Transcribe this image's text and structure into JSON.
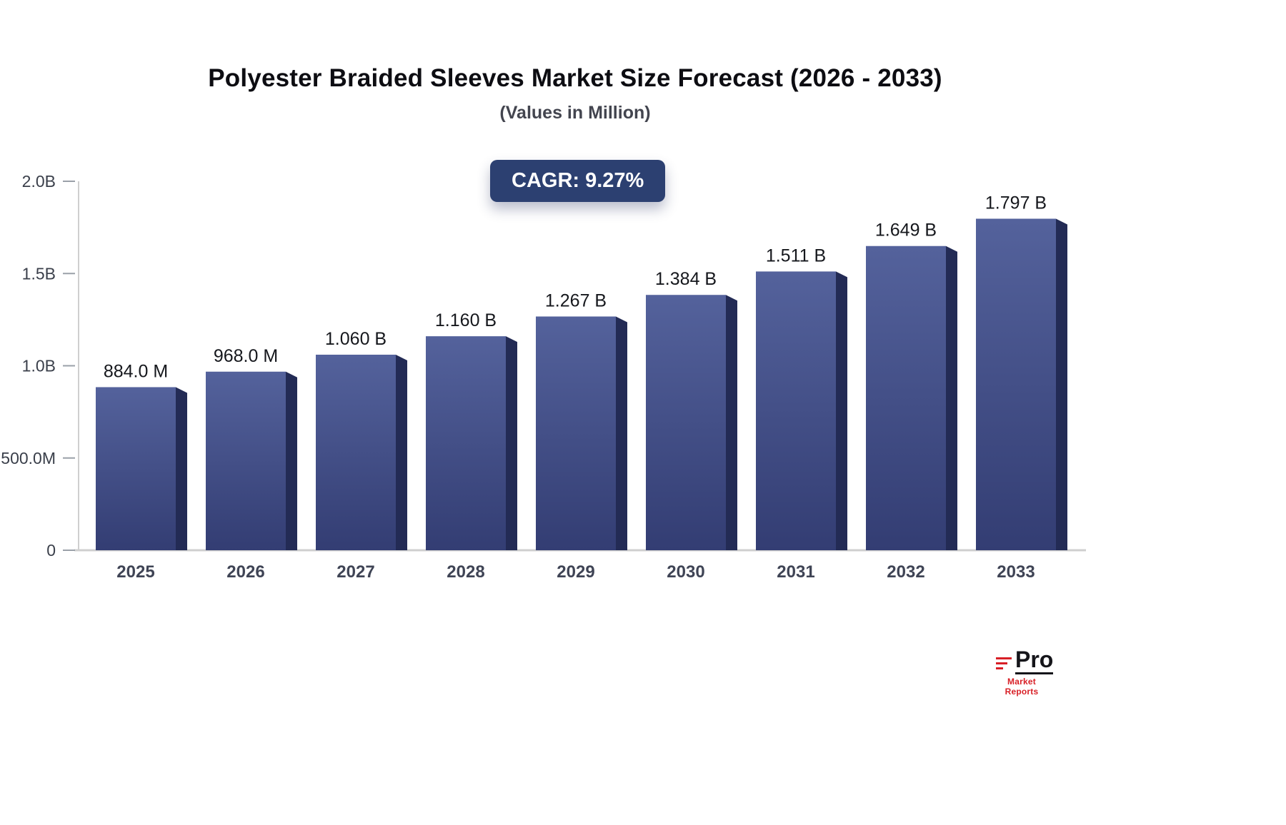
{
  "title": "Polyester Braided Sleeves Market Size Forecast (2026 - 2033)",
  "subtitle": "(Values in Million)",
  "badge": {
    "label": "CAGR: 9.27%"
  },
  "logo": {
    "text": "Pro",
    "subtext": "Market Reports"
  },
  "colors": {
    "bar_front_top": "#54629c",
    "bar_front_bottom": "#333d73",
    "bar_side": "#232b55",
    "badge_bg": "#2c4071",
    "axis_line": "#cfcfcf",
    "tick_mark": "#9aa0a8",
    "tick_text": "#3a3f4a",
    "value_text": "#15171c",
    "year_text": "#3f4455",
    "logo_red": "#d81f26"
  },
  "chart_data": {
    "type": "bar",
    "title": "Polyester Braided Sleeves Market Size Forecast (2026 - 2033)",
    "subtitle": "(Values in Million)",
    "unit": "Million",
    "cagr": "9.27%",
    "categories": [
      "2025",
      "2026",
      "2027",
      "2028",
      "2029",
      "2030",
      "2031",
      "2032",
      "2033"
    ],
    "values": [
      884.0,
      968.0,
      1060,
      1160,
      1267,
      1384,
      1511,
      1649,
      1797
    ],
    "value_labels": [
      "884.0 M",
      "968.0 M",
      "1.060 B",
      "1.160 B",
      "1.267 B",
      "1.384 B",
      "1.511 B",
      "1.649 B",
      "1.797 B"
    ],
    "ylim": [
      0,
      2000
    ],
    "yticks": [
      {
        "value": 0,
        "label": "0"
      },
      {
        "value": 500,
        "label": "500.0M"
      },
      {
        "value": 1000,
        "label": "1.0B"
      },
      {
        "value": 1500,
        "label": "1.5B"
      },
      {
        "value": 2000,
        "label": "2.0B"
      }
    ],
    "grid": false,
    "legend_position": "none"
  }
}
